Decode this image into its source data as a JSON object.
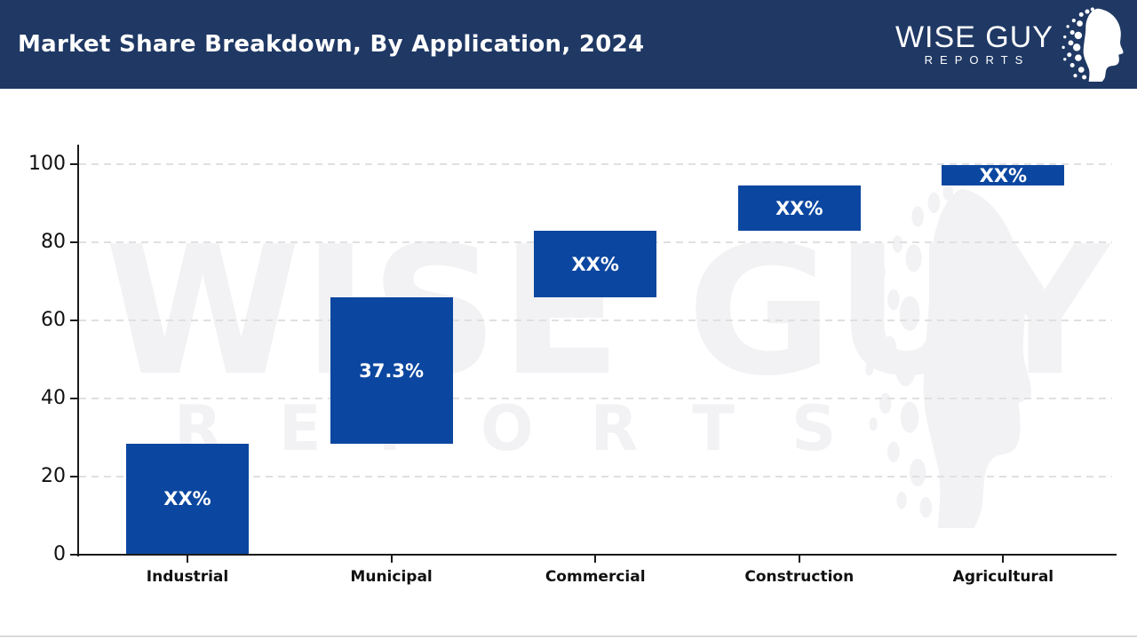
{
  "header": {
    "title": "Market Share Breakdown, By Application, 2024",
    "bg_color": "#1f3864",
    "logo": {
      "line1": "WISE GUY",
      "line2": "REPORTS"
    }
  },
  "watermark": {
    "line1": "WISE GUY",
    "line2": "REPORTS"
  },
  "chart_data": {
    "type": "bar",
    "subtype": "waterfall",
    "title": "Market Share Breakdown, By Application, 2024",
    "categories": [
      "Industrial",
      "Municipal",
      "Commercial",
      "Construction",
      "Agricultural"
    ],
    "series": [
      {
        "name": "Market Share (%)",
        "segments": [
          {
            "category": "Industrial",
            "start": 0,
            "end": 28.5,
            "value": 28.5,
            "label": "XX%"
          },
          {
            "category": "Municipal",
            "start": 28.5,
            "end": 65.8,
            "value": 37.3,
            "label": "37.3%"
          },
          {
            "category": "Commercial",
            "start": 65.8,
            "end": 82.9,
            "value": 17.1,
            "label": "XX%"
          },
          {
            "category": "Construction",
            "start": 82.9,
            "end": 94.5,
            "value": 11.6,
            "label": "XX%"
          },
          {
            "category": "Agricultural",
            "start": 94.5,
            "end": 99.8,
            "value": 5.3,
            "label": "XX%"
          }
        ]
      }
    ],
    "yticks": [
      0,
      20,
      40,
      60,
      80,
      100
    ],
    "ylim": [
      0,
      105
    ],
    "xlabel": "",
    "ylabel": "",
    "grid": "horizontal-dashed",
    "legend": "none",
    "bar_color": "#0b47a0",
    "bar_label_color": "#ffffff",
    "axis_color": "#1a1a1a",
    "grid_color": "#e0e0e0"
  }
}
